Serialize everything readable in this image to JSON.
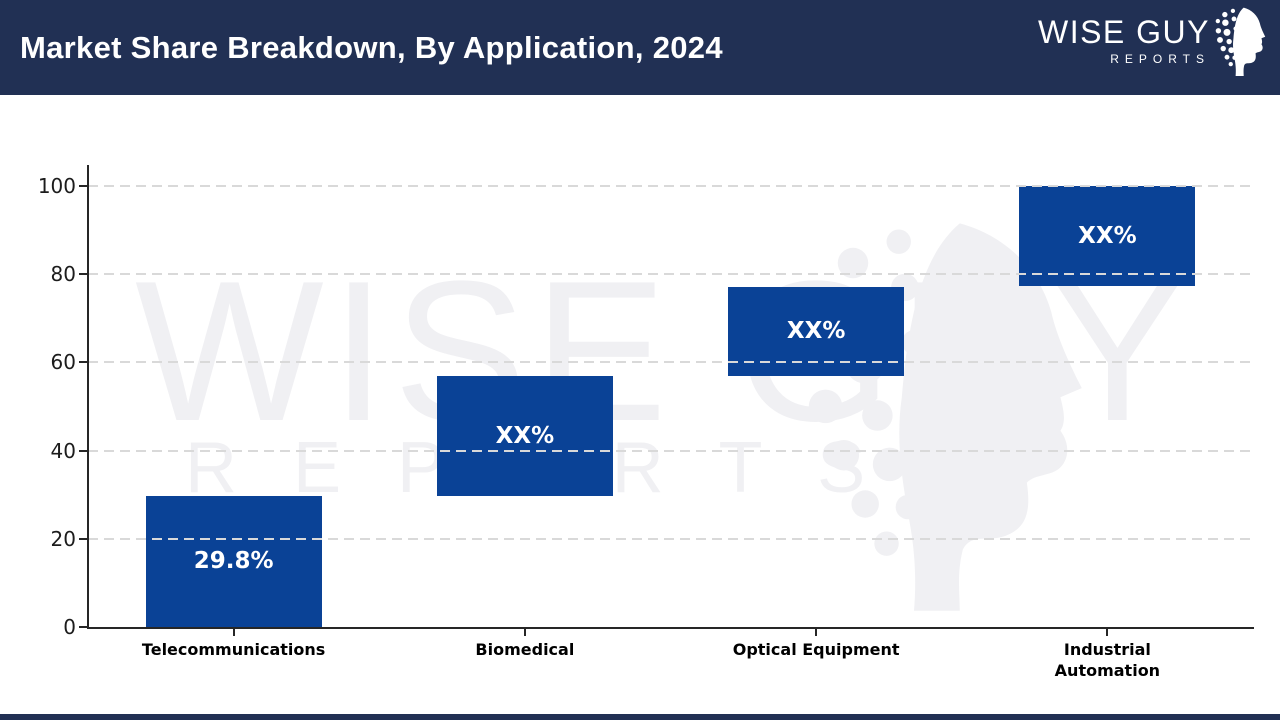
{
  "header": {
    "title": "Market Share Breakdown, By Application, 2024",
    "logo": {
      "line1": "WISE GUY",
      "line2": "REPORTS"
    }
  },
  "watermark": {
    "line1": "WISE GUY",
    "line2": "R E P O R T S"
  },
  "icons": {
    "logo_head": "head-profile-dots-icon",
    "watermark_head": "head-profile-dots-icon"
  },
  "colors": {
    "header_bg": "#213054",
    "footer_bg": "#213054",
    "bar": "#0a4296",
    "bar_label": "#ffffff",
    "grid": "#d9d9d9",
    "axis": "#262626",
    "tick_text": "#1c1c1c",
    "category_text": "#000000",
    "title_text": "#ffffff",
    "watermark": "#f0f0f3"
  },
  "chart_data": {
    "type": "bar",
    "subtype": "waterfall",
    "title": "Market Share Breakdown, By Application, 2024",
    "categories": [
      "Telecommunications",
      "Biomedical",
      "Optical Equipment",
      "Industrial\nAutomation"
    ],
    "bars": [
      {
        "category": "Telecommunications",
        "start": 0,
        "end": 29.8,
        "label": "29.8%"
      },
      {
        "category": "Biomedical",
        "start": 29.8,
        "end": 57,
        "label": "XX%"
      },
      {
        "category": "Optical Equipment",
        "start": 57,
        "end": 77.2,
        "label": "XX%"
      },
      {
        "category": "Industrial Automation",
        "start": 77.4,
        "end": 100,
        "label": "XX%"
      }
    ],
    "xlabel": "",
    "ylabel": "",
    "ylim": [
      0,
      100
    ],
    "yticks": [
      0,
      20,
      40,
      60,
      80,
      100
    ],
    "grid": "horizontal-dashed-over-bars",
    "legend": null,
    "bar_color": "#0a4296",
    "label_color": "#ffffff"
  }
}
